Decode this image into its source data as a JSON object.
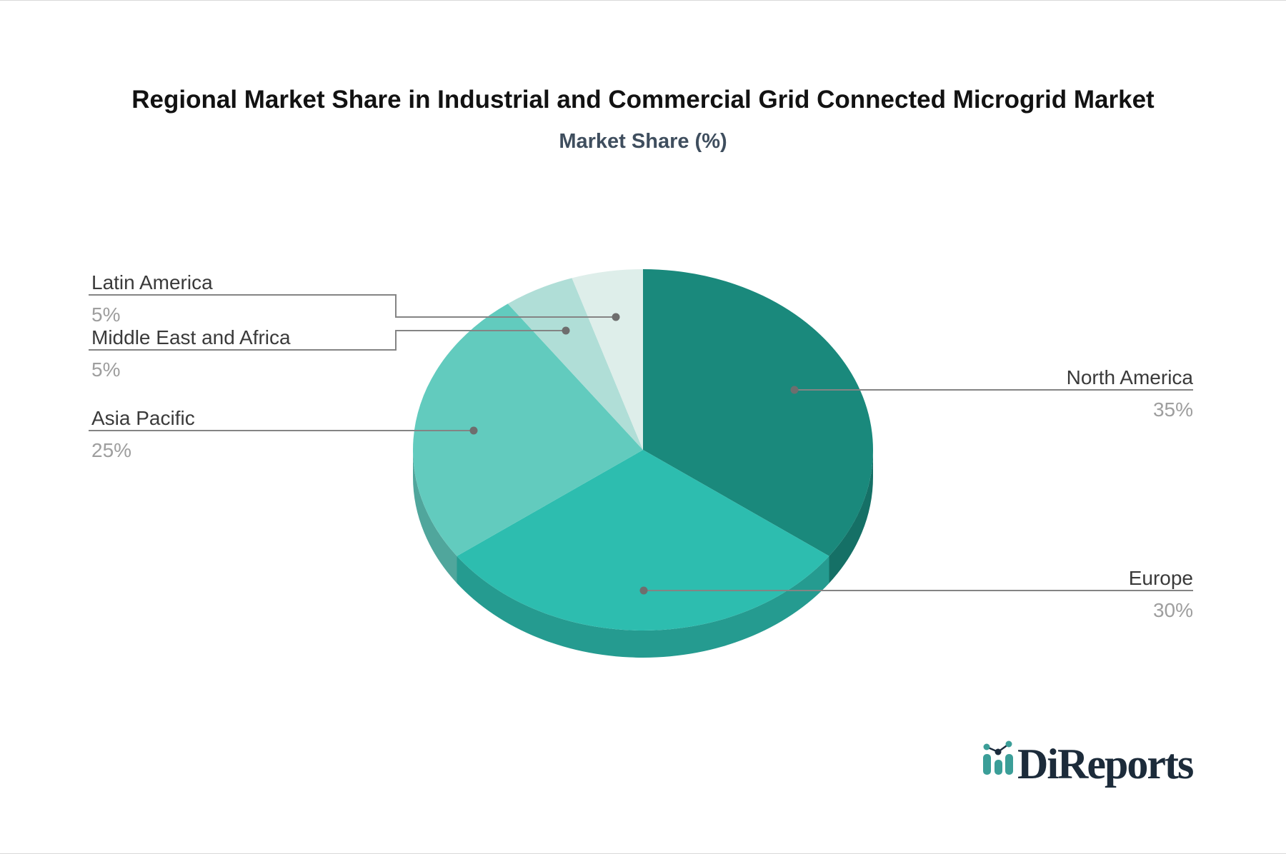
{
  "header": {
    "title": "Regional Market Share in Industrial and Commercial Grid Connected Microgrid Market",
    "subtitle": "Market Share (%)",
    "title_color": "#121212",
    "subtitle_color": "#3f4e5e"
  },
  "chart_data": {
    "type": "pie",
    "style": "3d",
    "title": "Regional Market Share in Industrial and Commercial Grid Connected Microgrid Market",
    "subtitle": "Market Share (%)",
    "unit": "%",
    "direction": "clockwise",
    "start_angle_deg": 0,
    "legend_position": "callout-labels",
    "categories": [
      "North America",
      "Europe",
      "Asia Pacific",
      "Middle East and Africa",
      "Latin America"
    ],
    "values": [
      35,
      30,
      25,
      5,
      5
    ],
    "slices": [
      {
        "name": "North America",
        "value": 35,
        "label": "35%",
        "color": "#1a897c"
      },
      {
        "name": "Europe",
        "value": 30,
        "label": "30%",
        "color": "#2dbdaf"
      },
      {
        "name": "Asia Pacific",
        "value": 25,
        "label": "25%",
        "color": "#62cbbe"
      },
      {
        "name": "Middle East and Africa",
        "value": 5,
        "label": "5%",
        "color": "#b0ded7"
      },
      {
        "name": "Latin America",
        "value": 5,
        "label": "5%",
        "color": "#deeeea"
      }
    ]
  },
  "callout_style": {
    "line_color": "#848484",
    "dot_color": "#6e6e6e",
    "name_color": "#3a3a3a",
    "pct_color": "#9e9e9e"
  },
  "logo": {
    "text": "DiReports",
    "icon": "bar-chart-trend-icon",
    "text_color": "#1c2b3a",
    "accent_color": "#3b9e98",
    "dark_color": "#1b2b3d"
  }
}
